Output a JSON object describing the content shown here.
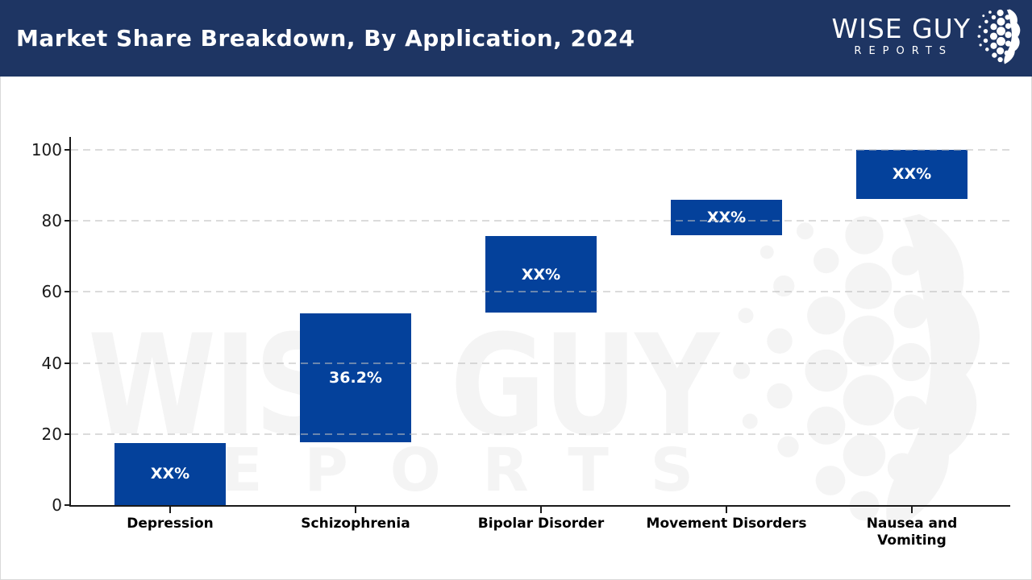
{
  "header": {
    "title": "Market Share Breakdown, By Application, 2024",
    "brand": {
      "line1": "WISE GUY",
      "line2": "REPORTS"
    }
  },
  "watermark": {
    "line1": "WISE GUY",
    "line2": "REPORTS"
  },
  "chart_data": {
    "type": "bar",
    "subtype": "waterfall",
    "title": "Market Share Breakdown, By Application, 2024",
    "xlabel": "",
    "ylabel": "",
    "ylim": [
      0,
      100
    ],
    "yticks": [
      0,
      20,
      40,
      60,
      80,
      100
    ],
    "grid": true,
    "grid_style": "dashed",
    "legend": "none",
    "bar_color": "#04419b",
    "label_color": "#ffffff",
    "categories": [
      "Depression",
      "Schizophrenia",
      "Bipolar Disorder",
      "Movement Disorders",
      "Nausea and Vomiting"
    ],
    "category_display_lines": [
      [
        "Depression"
      ],
      [
        "Schizophrenia"
      ],
      [
        "Bipolar Disorder"
      ],
      [
        "Movement Disorders"
      ],
      [
        "Nausea and",
        "Vomiting"
      ]
    ],
    "segments": [
      {
        "category": "Depression",
        "start": 0,
        "end": 17.5,
        "change": 17.5,
        "label": "XX%"
      },
      {
        "category": "Schizophrenia",
        "start": 17.7,
        "end": 53.9,
        "change": 36.2,
        "label": "36.2%"
      },
      {
        "category": "Bipolar Disorder",
        "start": 54.1,
        "end": 75.8,
        "change": 21.7,
        "label": "XX%"
      },
      {
        "category": "Movement Disorders",
        "start": 76.0,
        "end": 86.0,
        "change": 10.0,
        "label": "XX%"
      },
      {
        "category": "Nausea and Vomiting",
        "start": 86.2,
        "end": 100.0,
        "change": 13.8,
        "label": "XX%"
      }
    ]
  },
  "colors": {
    "header_bg": "#1e3563",
    "bar": "#04419b",
    "axis": "#1a1a1a",
    "gridline": "#dddddd",
    "watermark": "#f4f4f4",
    "card_border": "#d9d9d9",
    "page_bg": "#ffffff"
  }
}
